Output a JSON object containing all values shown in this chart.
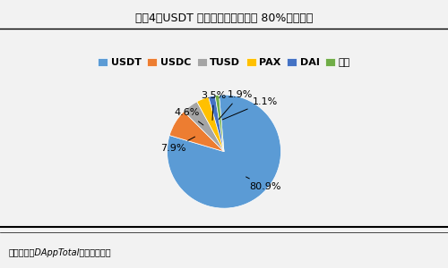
{
  "title": "图表4：USDT 占据全球稳定币市场 80%以上份额",
  "labels": [
    "USDT",
    "USDC",
    "TUSD",
    "PAX",
    "DAI",
    "其他"
  ],
  "values": [
    80.9,
    7.9,
    4.6,
    3.5,
    1.9,
    1.1
  ],
  "colors": [
    "#5B9BD5",
    "#ED7D31",
    "#A5A5A5",
    "#FFC000",
    "#4472C4",
    "#70AD47"
  ],
  "legend_labels": [
    "USDT",
    "USDC",
    "TUSD",
    "PAX",
    "DAI",
    "其他"
  ],
  "pct_labels": [
    "80.9%",
    "7.9%",
    "4.6%",
    "3.5%",
    "1.9%",
    "1.1%"
  ],
  "source_text": "资料来源：DAppTotal，恒大研究院",
  "background_color": "#F2F2F2",
  "title_fontsize": 9,
  "legend_fontsize": 8,
  "label_fontsize": 8
}
